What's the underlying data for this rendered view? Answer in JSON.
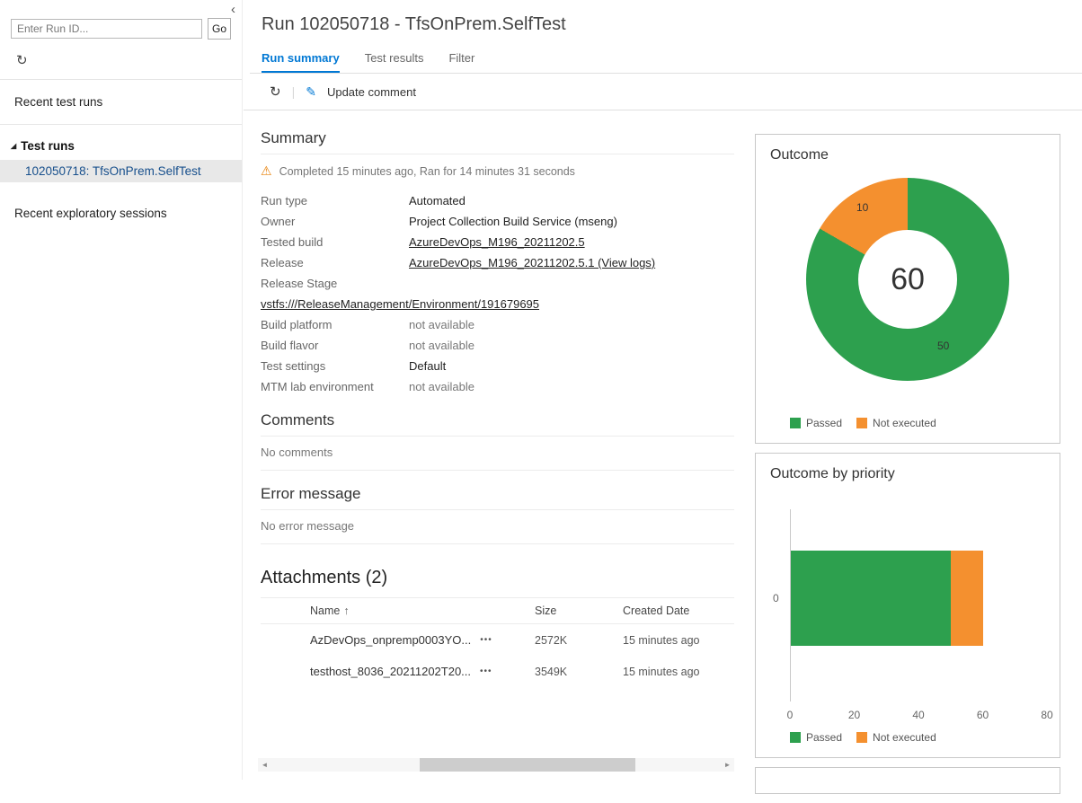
{
  "colors": {
    "accent": "#0078d4",
    "passed": "#2da04e",
    "not_executed": "#f4902f",
    "warning": "#e8820c",
    "selected_run_text": "#174f8c"
  },
  "icons": {
    "collapse": "‹",
    "refresh": "↻",
    "edit": "✎",
    "warning": "⚠",
    "tree_expanded": "◢",
    "sort_asc": "↑",
    "more": "•••",
    "toolbar_sep": "|",
    "scroll_left": "◄",
    "scroll_right": "►"
  },
  "sidebar": {
    "run_id_placeholder": "Enter Run ID...",
    "run_id_value": "",
    "go_label": "Go",
    "recent_test_runs": "Recent test runs",
    "test_runs_header": "Test runs",
    "selected_run": "102050718: TfsOnPrem.SelfTest",
    "recent_exploratory": "Recent exploratory sessions"
  },
  "header": {
    "title": "Run 102050718 - TfsOnPrem.SelfTest",
    "tabs": [
      {
        "label": "Run summary",
        "active": true
      },
      {
        "label": "Test results",
        "active": false
      },
      {
        "label": "Filter",
        "active": false
      }
    ]
  },
  "toolbar": {
    "update_comment_label": "Update comment"
  },
  "summary": {
    "heading": "Summary",
    "status": "Completed 15 minutes ago, Ran for 14 minutes 31 seconds",
    "fields": [
      {
        "label": "Run type",
        "value": "Automated"
      },
      {
        "label": "Owner",
        "value": "Project Collection Build Service (mseng)"
      },
      {
        "label": "Tested build",
        "value": "AzureDevOps_M196_20211202.5"
      },
      {
        "label": "Release",
        "value": "AzureDevOps_M196_20211202.5.1 (View logs)"
      },
      {
        "label": "Release Stage",
        "value": "vstfs:///ReleaseManagement/Environment/191679695"
      },
      {
        "label": "Build platform",
        "value": "not available"
      },
      {
        "label": "Build flavor",
        "value": "not available"
      },
      {
        "label": "Test settings",
        "value": "Default"
      },
      {
        "label": "MTM lab environment",
        "value": "not available"
      }
    ]
  },
  "comments": {
    "heading": "Comments",
    "empty": "No comments"
  },
  "error": {
    "heading": "Error message",
    "empty": "No error message"
  },
  "attachments": {
    "heading": "Attachments (2)",
    "columns": {
      "name": "Name",
      "size": "Size",
      "created": "Created Date"
    },
    "rows": [
      {
        "name": "AzDevOps_onpremp0003YO...",
        "size": "2572K",
        "created": "15 minutes ago"
      },
      {
        "name": "testhost_8036_20211202T20...",
        "size": "3549K",
        "created": "15 minutes ago"
      }
    ]
  },
  "chart_data": [
    {
      "type": "pie",
      "title": "Outcome",
      "labels": [
        "Passed",
        "Not executed"
      ],
      "values": [
        50,
        10
      ],
      "total": 60,
      "colors": [
        "#2da04e",
        "#f4902f"
      ],
      "legend": [
        "Passed",
        "Not executed"
      ],
      "legend_position": "bottom",
      "donut": true
    },
    {
      "type": "bar",
      "title": "Outcome by priority",
      "orientation": "horizontal",
      "stacked": true,
      "categories": [
        "0"
      ],
      "series": [
        {
          "name": "Passed",
          "values": [
            50
          ],
          "color": "#2da04e"
        },
        {
          "name": "Not executed",
          "values": [
            10
          ],
          "color": "#f4902f"
        }
      ],
      "xlim": [
        0,
        80
      ],
      "xticks": [
        0,
        20,
        40,
        60,
        80
      ],
      "legend_position": "bottom",
      "grid": false
    }
  ]
}
